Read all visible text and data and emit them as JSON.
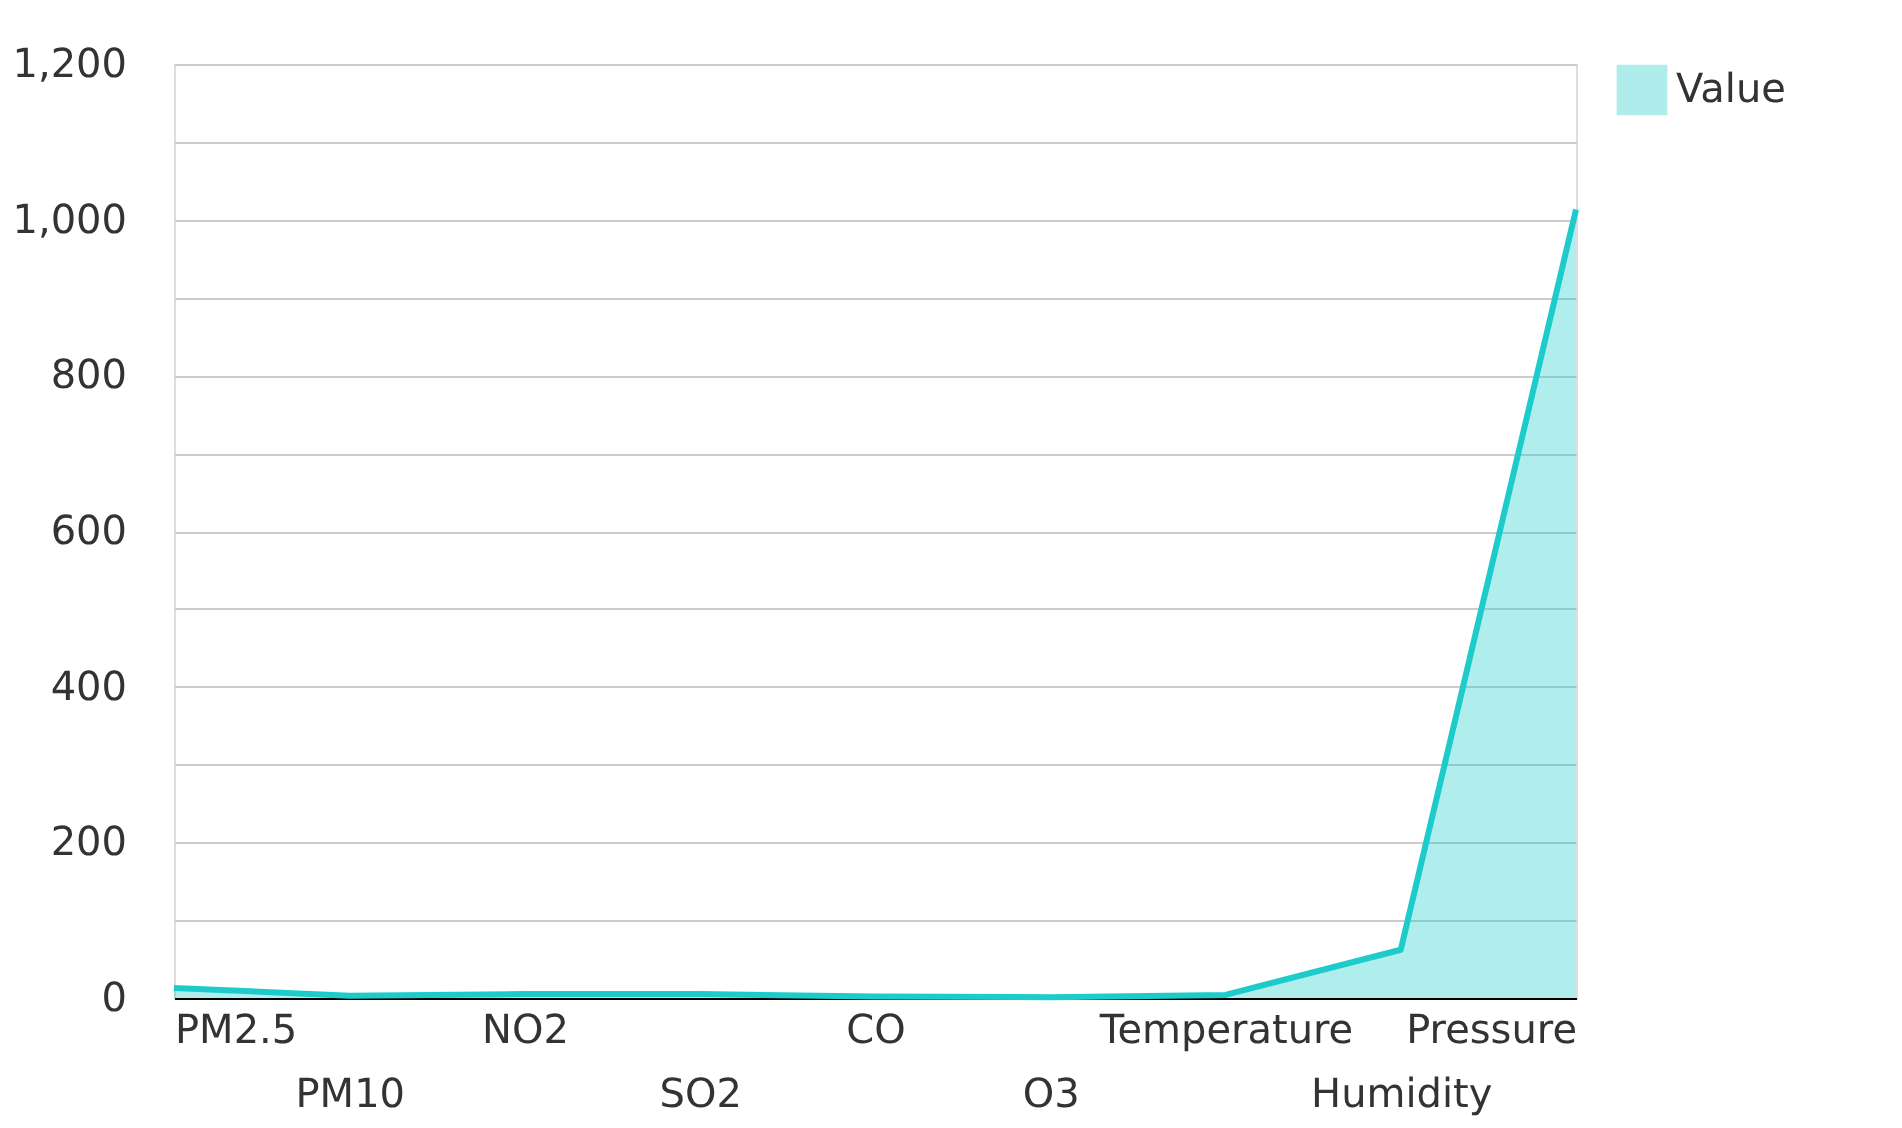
{
  "chart_data": {
    "type": "area",
    "categories": [
      "PM2.5",
      "PM10",
      "NO2",
      "SO2",
      "CO",
      "O3",
      "Temperature",
      "Humidity",
      "Pressure"
    ],
    "series": [
      {
        "name": "Value",
        "color": "#1ecbcb",
        "values": [
          13,
          3,
          5,
          5,
          2,
          1,
          4,
          62,
          1013
        ]
      }
    ],
    "ylim": [
      0,
      1200
    ],
    "yticks": [
      0,
      {
        "value": 100,
        "label": null
      },
      200,
      {
        "value": 300,
        "label": null
      },
      400,
      {
        "value": 500,
        "label": null
      },
      600,
      {
        "value": 700,
        "label": null
      },
      800,
      {
        "value": 900,
        "label": null
      },
      {
        "value": 1000,
        "label": "1,000"
      },
      {
        "value": 1100,
        "label": null
      },
      {
        "value": 1200,
        "label": "1,200"
      }
    ],
    "grid": "y",
    "legend": "top right"
  }
}
